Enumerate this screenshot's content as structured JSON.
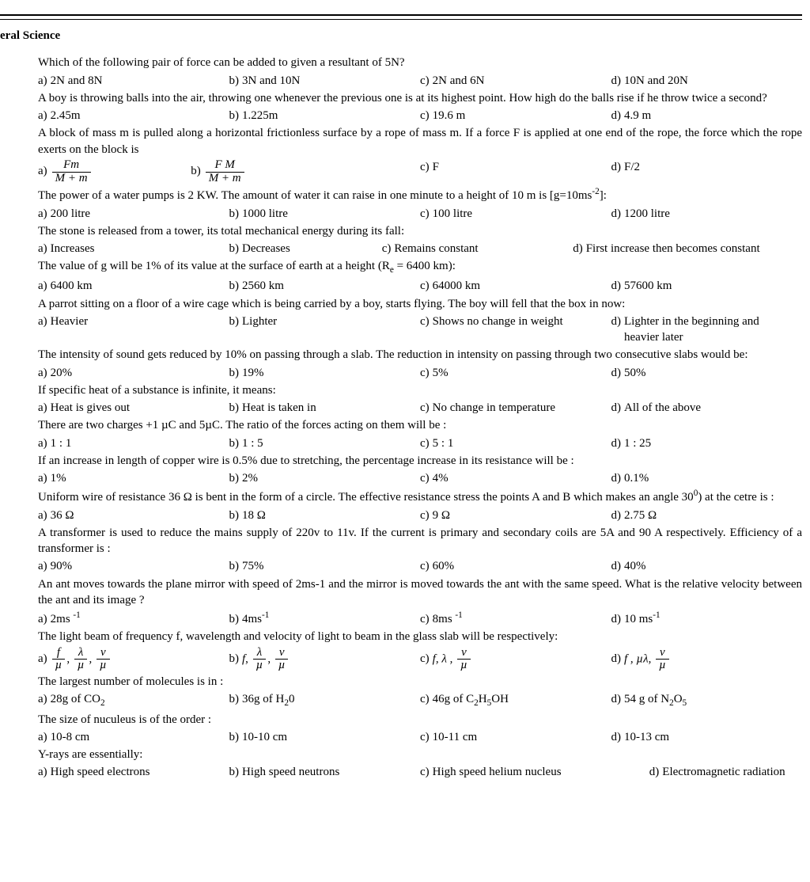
{
  "header": "eral Science",
  "questions": [
    {
      "stem": "Which of the following pair of force can be added to given a resultant of 5N?",
      "opts": [
        {
          "l": "a)",
          "t": "2N and 8N",
          "w": "w25"
        },
        {
          "l": "b)",
          "t": "3N and 10N",
          "w": "w25"
        },
        {
          "l": "c)",
          "t": "2N and 6N",
          "w": "w25"
        },
        {
          "l": "d)",
          "t": "10N and 20N",
          "w": "w25"
        }
      ]
    },
    {
      "stem": "A boy is throwing balls into the air, throwing one whenever the previous one is at its highest point. How high do the balls rise if he throw twice a second?",
      "opts": [
        {
          "l": "a)",
          "t": "2.45m",
          "w": "w25"
        },
        {
          "l": "b)",
          "t": "1.225m",
          "w": "w25"
        },
        {
          "l": "c)",
          "t": "19.6 m",
          "w": "w25"
        },
        {
          "l": "d)",
          "t": "4.9 m",
          "w": "w25"
        }
      ]
    },
    {
      "stem": "A block of mass m is pulled along a horizontal frictionless surface by a rope of mass m. If a force F is applied at one end of the rope, the force which the rope exerts on the block is",
      "opts": [
        {
          "l": "a)",
          "html": "<span class='frac'><span class='num'>Fm</span><span class='den'>M + m</span></span>",
          "w": "w20"
        },
        {
          "l": "b)",
          "html": "<span class='frac'><span class='num'>F&nbsp;M</span><span class='den'>M + m</span></span>",
          "w": "w30"
        },
        {
          "l": "c)",
          "t": "F",
          "w": "w25"
        },
        {
          "l": "d)",
          "t": "F/2",
          "w": "w25"
        }
      ]
    },
    {
      "stem_html": "The power of a water pumps is 2 KW. The amount of water it can raise in one minute to a height of 10 m is [g=10ms<span class='sup'>-2</span>]:",
      "opts": [
        {
          "l": "a)",
          "t": "200 litre",
          "w": "w25"
        },
        {
          "l": "b)",
          "t": "1000 litre",
          "w": "w25"
        },
        {
          "l": "c)",
          "t": "100 litre",
          "w": "w25"
        },
        {
          "l": "d)",
          "t": "1200 litre",
          "w": "w25"
        }
      ]
    },
    {
      "stem": "The stone is released from a tower, its total mechanical energy during its fall:",
      "opts": [
        {
          "l": "a)",
          "t": "Increases",
          "w": "w25"
        },
        {
          "l": "b)",
          "t": "Decreases",
          "w": "w20"
        },
        {
          "l": "c)",
          "t": "Remains constant",
          "w": "w25"
        },
        {
          "l": "d)",
          "t": "First increase then becomes constant",
          "w": "w30"
        }
      ]
    },
    {
      "stem_html": "The value of g will be 1% of its value at the surface of earth at a height (R<span class='sub'>e</span> = 6400 km):",
      "opts": [
        {
          "l": "a)",
          "t": "6400 km",
          "w": "w25"
        },
        {
          "l": "b)",
          "t": "2560 km",
          "w": "w25"
        },
        {
          "l": "c)",
          "t": "64000 km",
          "w": "w25"
        },
        {
          "l": "d)",
          "t": "57600 km",
          "w": "w25"
        }
      ]
    },
    {
      "stem": "A parrot sitting on a floor of a wire cage which is being carried by a boy, starts flying. The boy will fell that the box in now:",
      "opts": [
        {
          "l": "a)",
          "t": "Heavier",
          "w": "w25"
        },
        {
          "l": "b)",
          "t": "Lighter",
          "w": "w25"
        },
        {
          "l": "c)",
          "t": "Shows no change in weight",
          "w": "w25"
        },
        {
          "l": "d)",
          "t": "Lighter in the beginning and heavier later",
          "w": "w25"
        }
      ]
    },
    {
      "stem": "The intensity of sound gets reduced by 10% on passing through a slab. The reduction in intensity on passing through two consecutive slabs would be:",
      "opts": [
        {
          "l": "a)",
          "t": "20%",
          "w": "w25"
        },
        {
          "l": "b)",
          "t": "19%",
          "w": "w25"
        },
        {
          "l": "c)",
          "t": "5%",
          "w": "w25"
        },
        {
          "l": "d)",
          "t": "50%",
          "w": "w25"
        }
      ]
    },
    {
      "stem": "If specific heat of a substance is infinite, it means:",
      "opts": [
        {
          "l": "a)",
          "t": "Heat is gives out",
          "w": "w25"
        },
        {
          "l": "b)",
          "t": "Heat is taken in",
          "w": "w25"
        },
        {
          "l": "c)",
          "t": "No change in temperature",
          "w": "w25"
        },
        {
          "l": "d)",
          "t": "All of the above",
          "w": "w25"
        }
      ]
    },
    {
      "stem": "There are two charges +1 µC and 5µC. The ratio of the forces acting on them will be :",
      "opts": [
        {
          "l": "a)",
          "t": "1 : 1",
          "w": "w25"
        },
        {
          "l": "b)",
          "t": "1 : 5",
          "w": "w25"
        },
        {
          "l": "c)",
          "t": "5 : 1",
          "w": "w25"
        },
        {
          "l": "d)",
          "t": "1 : 25",
          "w": "w25"
        }
      ]
    },
    {
      "stem": "If an increase in length of copper wire is 0.5% due to stretching, the percentage increase in its resistance will be :",
      "opts": [
        {
          "l": "a)",
          "t": "1%",
          "w": "w25"
        },
        {
          "l": "b)",
          "t": "2%",
          "w": "w25"
        },
        {
          "l": "c)",
          "t": "4%",
          "w": "w25"
        },
        {
          "l": "d)",
          "t": "0.1%",
          "w": "w25"
        }
      ]
    },
    {
      "stem_html": "Uniform wire of resistance 36 Ω is bent in the form of a circle. The effective resistance stress the points A and B which makes an angle 30<span class='sup'>0</span>) at the cetre is :",
      "opts": [
        {
          "l": "a)",
          "t": "36 Ω",
          "w": "w25"
        },
        {
          "l": "b)",
          "t": "18 Ω",
          "w": "w25"
        },
        {
          "l": "c)",
          "t": "9 Ω",
          "w": "w25"
        },
        {
          "l": "d)",
          "t": "2.75 Ω",
          "w": "w25"
        }
      ]
    },
    {
      "stem": "A transformer is used to reduce the mains supply of 220v to 11v. If the current is primary and secondary coils are 5A and 90 A respectively. Efficiency of a transformer is :",
      "opts": [
        {
          "l": "a)",
          "t": "90%",
          "w": "w25"
        },
        {
          "l": "b)",
          "t": "75%",
          "w": "w25"
        },
        {
          "l": "c)",
          "t": "60%",
          "w": "w25"
        },
        {
          "l": "d)",
          "t": "40%",
          "w": "w25"
        }
      ]
    },
    {
      "stem": "An ant moves towards the plane mirror with speed of 2ms-1 and the mirror is moved towards the ant with the same speed. What is the relative velocity between the ant and its image ?",
      "opts": [
        {
          "l": "a)",
          "html": "2ms <span class='sup'>-1</span>",
          "w": "w25"
        },
        {
          "l": "b)",
          "html": "4ms<span class='sup'>-1</span>",
          "w": "w25"
        },
        {
          "l": "c)",
          "html": "8ms <span class='sup'>-1</span>",
          "w": "w25"
        },
        {
          "l": "d)",
          "html": "10 ms<span class='sup'>-1</span>",
          "w": "w25"
        }
      ]
    },
    {
      "stem": "The light beam of frequency f, wavelength and velocity of light to beam in the glass slab will be respectively:",
      "opts": [
        {
          "l": "a)",
          "html": "<span class='frac'><span class='num'>f</span><span class='den'>µ</span></span>, <span class='frac'><span class='num'>λ</span><span class='den'>µ</span></span>, <span class='frac'><span class='num'>v</span><span class='den'>µ</span></span>",
          "w": "w25"
        },
        {
          "l": "b)",
          "html": "<span class='ital'>f</span>, <span class='frac'><span class='num'>λ</span><span class='den'>µ</span></span>, <span class='frac'><span class='num'>v</span><span class='den'>µ</span></span>",
          "w": "w25"
        },
        {
          "l": "c)",
          "html": "<span class='ital'>f</span>, <span class='ital'>λ</span> , <span class='frac'><span class='num'>v</span><span class='den'>µ</span></span>",
          "w": "w25"
        },
        {
          "l": "d)",
          "html": "<span class='ital'>f</span> , <span class='ital'>µλ</span>, <span class='frac'><span class='num'>v</span><span class='den'>µ</span></span>",
          "w": "w25"
        }
      ]
    },
    {
      "stem": "The largest number of molecules is in :",
      "opts": [
        {
          "l": "a)",
          "html": "28g of CO<span class='sub'>2</span>",
          "w": "w25"
        },
        {
          "l": "b)",
          "html": "36g of H<span class='sub'>2</span>0",
          "w": "w25"
        },
        {
          "l": "c)",
          "html": "46g of C<span class='sub'>2</span>H<span class='sub'>5</span>OH",
          "w": "w25"
        },
        {
          "l": "d)",
          "html": "54 g of N<span class='sub'>2</span>O<span class='sub'>5</span>",
          "w": "w25"
        }
      ]
    },
    {
      "stem": "The size of nuculeus is of the order :",
      "opts": [
        {
          "l": "a)",
          "t": "10-8 cm",
          "w": "w25"
        },
        {
          "l": "b)",
          "t": "10-10 cm",
          "w": "w25"
        },
        {
          "l": "c)",
          "t": "10-11 cm",
          "w": "w25"
        },
        {
          "l": "d)",
          "t": "10-13 cm",
          "w": "w25"
        }
      ]
    },
    {
      "stem": "Y-rays are essentially:",
      "opts": [
        {
          "l": "a)",
          "t": "High speed electrons",
          "w": "w25"
        },
        {
          "l": "b)",
          "t": "High speed neutrons",
          "w": "w25"
        },
        {
          "l": "c)",
          "t": "High speed helium nucleus",
          "w": "w30"
        },
        {
          "l": "d)",
          "t": "Electromagnetic radiation",
          "w": "w20"
        }
      ]
    }
  ]
}
